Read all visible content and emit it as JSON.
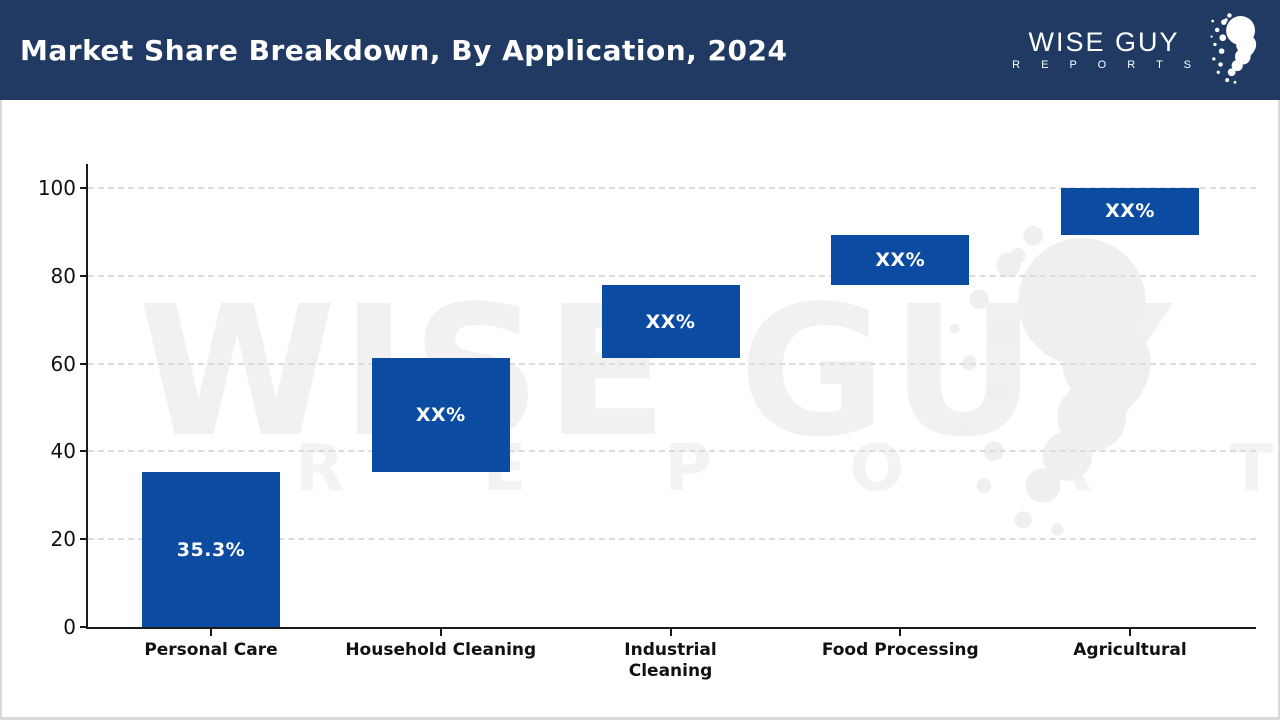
{
  "header": {
    "title": "Market Share Breakdown, By Application, 2024",
    "logo": {
      "line1": "WISE GUY",
      "line2": "R E P O R T S"
    }
  },
  "watermark": {
    "line1": "WISE GUY",
    "line2": "R E P O R T S"
  },
  "colors": {
    "header_bg": "#203a64",
    "bar": "#0b4ba1",
    "bar_label": "#ffffff",
    "grid": "#dcdcdc",
    "axis": "#1a1a1a",
    "frame": "#d9d9d9",
    "watermark": "#f1f1f1"
  },
  "chart_data": {
    "type": "bar",
    "subtype": "floating-segment-waterfall",
    "title": "Market Share Breakdown, By Application, 2024",
    "categories": [
      "Personal Care",
      "Household Cleaning",
      "Industrial Cleaning",
      "Food Processing",
      "Agricultural"
    ],
    "tick_display": [
      "Personal Care",
      "Household Cleaning",
      "Industrial\nCleaning",
      "Food Processing",
      "Agricultural"
    ],
    "series": [
      {
        "name": "Market share segment",
        "segments": [
          {
            "category": "Personal Care",
            "from": 0,
            "to": 35.3,
            "label": "35.3%"
          },
          {
            "category": "Household Cleaning",
            "from": 35.3,
            "to": 61.2,
            "label": "XX%"
          },
          {
            "category": "Industrial Cleaning",
            "from": 61.2,
            "to": 77.9,
            "label": "XX%"
          },
          {
            "category": "Food Processing",
            "from": 77.9,
            "to": 89.3,
            "label": "XX%"
          },
          {
            "category": "Agricultural",
            "from": 89.3,
            "to": 100,
            "label": "XX%"
          }
        ]
      }
    ],
    "ylim": [
      0,
      105
    ],
    "yticks": [
      0,
      20,
      40,
      60,
      80,
      100
    ],
    "xlabel": "",
    "ylabel": "",
    "legend": "none",
    "grid": {
      "horizontal": true,
      "style": "dashed"
    }
  }
}
